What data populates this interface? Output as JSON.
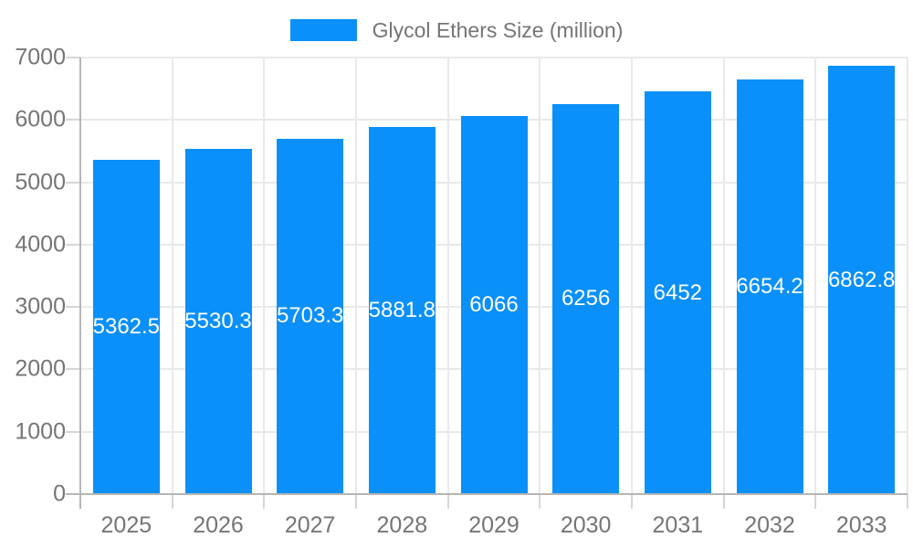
{
  "chart_data": {
    "type": "bar",
    "title": "Glycol Ethers Size (million)",
    "legend": {
      "label": "Glycol Ethers Size (million)",
      "position": "top-center"
    },
    "categories": [
      "2025",
      "2026",
      "2027",
      "2028",
      "2029",
      "2030",
      "2031",
      "2032",
      "2033"
    ],
    "values": [
      5362.5,
      5530.3,
      5703.3,
      5881.8,
      6066,
      6256,
      6452,
      6654.2,
      6862.8
    ],
    "bar_labels": [
      "5362.5",
      "5530.3",
      "5703.3",
      "5881.8",
      "6066",
      "6256",
      "6452",
      "6654.2",
      "6862.8"
    ],
    "xlabel": "",
    "ylabel": "",
    "ylim": [
      0,
      7000
    ],
    "yticks": [
      0,
      1000,
      2000,
      3000,
      4000,
      5000,
      6000,
      7000
    ],
    "grid": true,
    "colors": {
      "bar": "#0a90f8",
      "bar_label": "#ffffff",
      "axis_text": "#757575",
      "legend_text": "#757575",
      "gridline": "#e9e9e9",
      "tick": "#d6d6d6",
      "axis_line": "#b5b5b5",
      "background": "#ffffff"
    }
  }
}
